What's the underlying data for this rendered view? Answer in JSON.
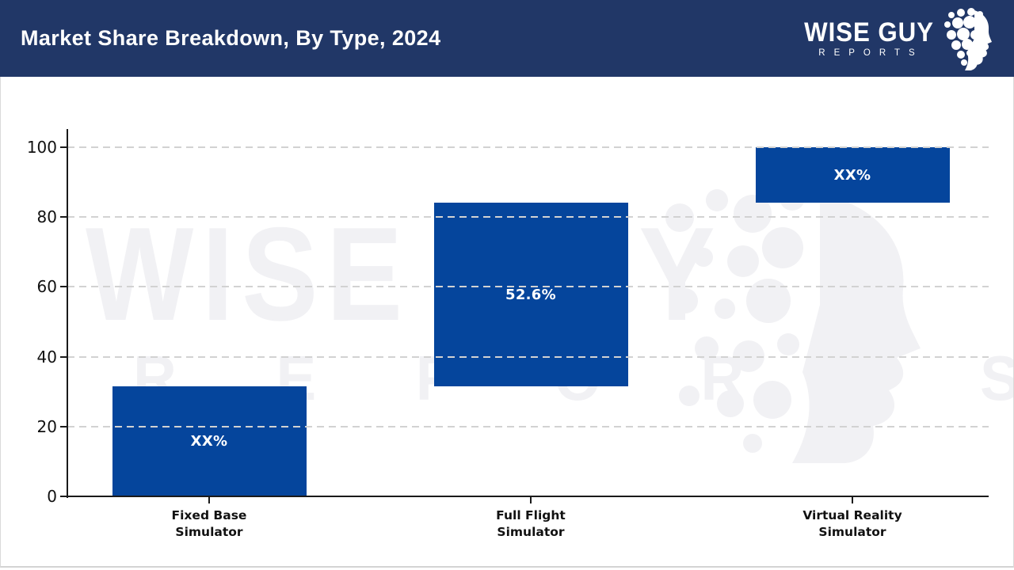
{
  "header": {
    "title": "Market Share Breakdown, By Type, 2024"
  },
  "logo": {
    "name_top": "WISE GUY",
    "name_bottom": "REPORTS"
  },
  "watermark": {
    "text_top": "WISE GUY",
    "text_bottom": "R E P O R T S"
  },
  "colors": {
    "header_bg": "#213767",
    "bar_fill": "#05459c",
    "bar_label_text": "#ffffff",
    "gridline": "#d2d2d2",
    "axis": "#1a1a1a",
    "watermark": "#f1f1f4",
    "frame_border": "#d9d9d9"
  },
  "chart_data": {
    "type": "bar",
    "subtype": "floating-waterfall",
    "title": "Market Share Breakdown, By Type, 2024",
    "categories": [
      {
        "line1": "Fixed Base",
        "line2": "Simulator"
      },
      {
        "line1": "Full Flight",
        "line2": "Simulator"
      },
      {
        "line1": "Virtual Reality",
        "line2": "Simulator"
      }
    ],
    "bars": [
      {
        "category": "Fixed Base Simulator",
        "start": 0,
        "end": 31.5,
        "label": "XX%"
      },
      {
        "category": "Full Flight Simulator",
        "start": 31.5,
        "end": 84.1,
        "label": "52.6%"
      },
      {
        "category": "Virtual Reality Simulator",
        "start": 84.1,
        "end": 100,
        "label": "XX%"
      }
    ],
    "ylim": [
      0,
      100
    ],
    "yticks": [
      0,
      20,
      40,
      60,
      80,
      100
    ],
    "xlabel": "",
    "ylabel": "",
    "legend": "none",
    "grid": "horizontal dashed gridlines drawn over bars"
  }
}
